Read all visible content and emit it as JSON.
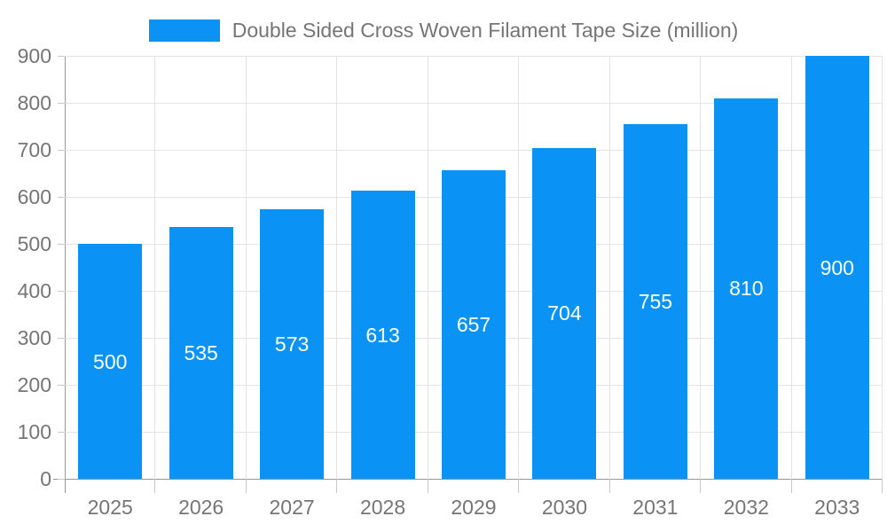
{
  "chart_data": {
    "type": "bar",
    "title": "Double Sided Cross Woven Filament Tape Size (million)",
    "categories": [
      "2025",
      "2026",
      "2027",
      "2028",
      "2029",
      "2030",
      "2031",
      "2032",
      "2033"
    ],
    "series": [
      {
        "name": "Double Sided Cross Woven Filament Tape Size (million)",
        "color": "#0A93F5",
        "values": [
          500,
          535,
          573,
          613,
          657,
          704,
          755,
          810,
          900
        ]
      }
    ],
    "xlabel": "",
    "ylabel": "",
    "ylim": [
      0,
      900
    ],
    "yticks": [
      0,
      100,
      200,
      300,
      400,
      500,
      600,
      700,
      800,
      900
    ],
    "grid": true,
    "legend_position": "top",
    "value_label_position": "inside-center",
    "value_label_color": "#ffffff"
  },
  "style": {
    "bar_color": "#0A93F5",
    "grid_color": "#e4e4e4",
    "axis_color": "#999999",
    "tick_color": "#c8c8c8",
    "text_color": "#757575",
    "background": "#ffffff"
  }
}
